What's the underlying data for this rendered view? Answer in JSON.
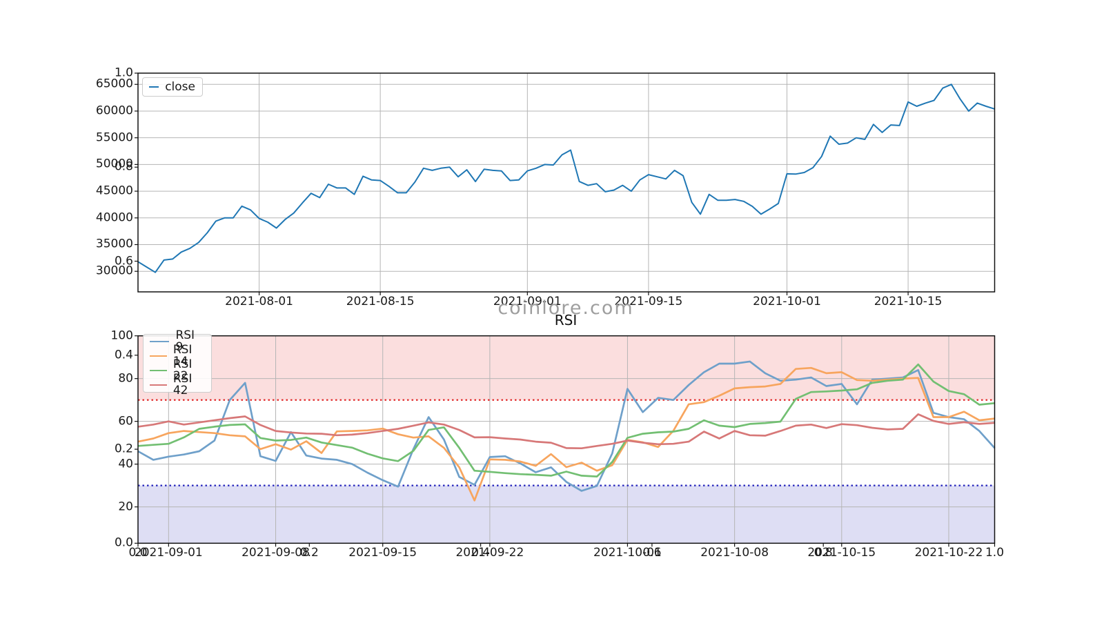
{
  "watermark": {
    "text": "coinlore.com",
    "color": "#9e9e9e"
  },
  "top_chart": {
    "legend": [
      {
        "label": "close",
        "color": "#1f77b4"
      }
    ],
    "y_tick_labels": [
      "30000",
      "35000",
      "40000",
      "45000",
      "50000",
      "55000",
      "60000",
      "65000"
    ],
    "x_tick_labels": [
      "2021-08-01",
      "2021-08-15",
      "2021-09-01",
      "2021-09-15",
      "2021-10-01",
      "2021-10-15"
    ]
  },
  "overlay_axis": {
    "left_tick_labels": [
      "1.0",
      "0.8",
      "0.6",
      "0.4",
      "0.2",
      "0.0"
    ],
    "bottom_tick_labels": [
      "0.0",
      "0.2",
      "0.4",
      "0.6",
      "0.8",
      "1.0"
    ]
  },
  "rsi_chart": {
    "title": "RSI",
    "legend": [
      {
        "label": "RSI 9",
        "color": "#6fa0ca"
      },
      {
        "label": "RSI 14",
        "color": "#f7a55e"
      },
      {
        "label": "RSI 22",
        "color": "#72bf72"
      },
      {
        "label": "RSI 42",
        "color": "#d77878"
      }
    ],
    "y_tick_labels": [
      "20",
      "40",
      "60",
      "80",
      "100"
    ],
    "x_tick_labels": [
      "2021-09-01",
      "2021-09-08",
      "2021-09-15",
      "2021-09-22",
      "2021-10-01",
      "2021-10-08",
      "2021-10-15",
      "2021-10-22"
    ],
    "overbought_level": 70,
    "oversold_level": 30,
    "band_colors": {
      "overbought": "#fbdedе",
      "oversold": "#dedef4"
    },
    "dotted_line_colors": {
      "overbought": "#df2020",
      "oversold": "#2323bb"
    }
  },
  "chart_data": [
    {
      "type": "line",
      "title": "",
      "ylabel": "",
      "grid": true,
      "legend_position": "upper left",
      "ylim": [
        26150,
        67100
      ],
      "y_ticks": [
        30000,
        35000,
        40000,
        45000,
        50000,
        55000,
        60000,
        65000
      ],
      "x_tick_dates": [
        "2021-08-01",
        "2021-08-15",
        "2021-09-01",
        "2021-09-15",
        "2021-10-01",
        "2021-10-15"
      ],
      "x": [
        "2021-07-18",
        "2021-07-19",
        "2021-07-20",
        "2021-07-21",
        "2021-07-22",
        "2021-07-23",
        "2021-07-24",
        "2021-07-25",
        "2021-07-26",
        "2021-07-27",
        "2021-07-28",
        "2021-07-29",
        "2021-07-30",
        "2021-07-31",
        "2021-08-01",
        "2021-08-02",
        "2021-08-03",
        "2021-08-04",
        "2021-08-05",
        "2021-08-06",
        "2021-08-07",
        "2021-08-08",
        "2021-08-09",
        "2021-08-10",
        "2021-08-11",
        "2021-08-12",
        "2021-08-13",
        "2021-08-14",
        "2021-08-15",
        "2021-08-16",
        "2021-08-17",
        "2021-08-18",
        "2021-08-19",
        "2021-08-20",
        "2021-08-21",
        "2021-08-22",
        "2021-08-23",
        "2021-08-24",
        "2021-08-25",
        "2021-08-26",
        "2021-08-27",
        "2021-08-28",
        "2021-08-29",
        "2021-08-30",
        "2021-08-31",
        "2021-09-01",
        "2021-09-02",
        "2021-09-03",
        "2021-09-04",
        "2021-09-05",
        "2021-09-06",
        "2021-09-07",
        "2021-09-08",
        "2021-09-09",
        "2021-09-10",
        "2021-09-11",
        "2021-09-12",
        "2021-09-13",
        "2021-09-14",
        "2021-09-15",
        "2021-09-16",
        "2021-09-17",
        "2021-09-18",
        "2021-09-19",
        "2021-09-20",
        "2021-09-21",
        "2021-09-22",
        "2021-09-23",
        "2021-09-24",
        "2021-09-25",
        "2021-09-26",
        "2021-09-27",
        "2021-09-28",
        "2021-09-29",
        "2021-09-30",
        "2021-10-01",
        "2021-10-02",
        "2021-10-03",
        "2021-10-04",
        "2021-10-05",
        "2021-10-06",
        "2021-10-07",
        "2021-10-08",
        "2021-10-09",
        "2021-10-10",
        "2021-10-11",
        "2021-10-12",
        "2021-10-13",
        "2021-10-14",
        "2021-10-15",
        "2021-10-16",
        "2021-10-17",
        "2021-10-18",
        "2021-10-19",
        "2021-10-20",
        "2021-10-21",
        "2021-10-22",
        "2021-10-23",
        "2021-10-24",
        "2021-10-25"
      ],
      "series": [
        {
          "name": "close",
          "color": "#1f77b4",
          "values": [
            31800,
            30800,
            29800,
            32100,
            32300,
            33600,
            34300,
            35400,
            37200,
            39400,
            40000,
            40000,
            42200,
            41500,
            39900,
            39200,
            38100,
            39700,
            40900,
            42800,
            44600,
            43800,
            46300,
            45600,
            45600,
            44400,
            47800,
            47100,
            47000,
            45900,
            44700,
            44700,
            46700,
            49300,
            48900,
            49300,
            49500,
            47700,
            49000,
            46800,
            49100,
            48900,
            48800,
            47000,
            47100,
            48800,
            49300,
            50000,
            49900,
            51800,
            52700,
            46800,
            46100,
            46400,
            44900,
            45200,
            46100,
            45000,
            47100,
            48100,
            47700,
            47300,
            48900,
            47900,
            42900,
            40700,
            44400,
            43300,
            43300,
            43450,
            43100,
            42150,
            40700,
            41650,
            42700,
            48250,
            48200,
            48500,
            49400,
            51500,
            55300,
            53800,
            54000,
            55000,
            54700,
            57500,
            56000,
            57400,
            57300,
            61700,
            60900,
            61500,
            62000,
            64300,
            65000,
            62300,
            60000,
            61500,
            60900,
            60400
          ]
        }
      ]
    },
    {
      "type": "line",
      "title": "RSI",
      "grid": true,
      "legend_position": "upper left",
      "ylim": [
        3,
        100
      ],
      "y_ticks": [
        20,
        40,
        60,
        80,
        100
      ],
      "x_tick_dates": [
        "2021-09-01",
        "2021-09-08",
        "2021-09-15",
        "2021-09-22",
        "2021-10-01",
        "2021-10-08",
        "2021-10-15",
        "2021-10-22"
      ],
      "hlines": [
        {
          "value": 70,
          "color": "#df2020"
        },
        {
          "value": 30,
          "color": "#2323bb"
        }
      ],
      "bands": [
        {
          "from": 70,
          "to": 100,
          "color": "#fbdede"
        },
        {
          "from": 3,
          "to": 30,
          "color": "#dedef4"
        }
      ],
      "x": [
        "2021-08-30",
        "2021-08-31",
        "2021-09-01",
        "2021-09-02",
        "2021-09-03",
        "2021-09-04",
        "2021-09-05",
        "2021-09-06",
        "2021-09-07",
        "2021-09-08",
        "2021-09-09",
        "2021-09-10",
        "2021-09-11",
        "2021-09-12",
        "2021-09-13",
        "2021-09-14",
        "2021-09-15",
        "2021-09-16",
        "2021-09-17",
        "2021-09-18",
        "2021-09-19",
        "2021-09-20",
        "2021-09-21",
        "2021-09-22",
        "2021-09-23",
        "2021-09-24",
        "2021-09-25",
        "2021-09-26",
        "2021-09-27",
        "2021-09-28",
        "2021-09-29",
        "2021-09-30",
        "2021-10-01",
        "2021-10-02",
        "2021-10-03",
        "2021-10-04",
        "2021-10-05",
        "2021-10-06",
        "2021-10-07",
        "2021-10-08",
        "2021-10-09",
        "2021-10-10",
        "2021-10-11",
        "2021-10-12",
        "2021-10-13",
        "2021-10-14",
        "2021-10-15",
        "2021-10-16",
        "2021-10-17",
        "2021-10-18",
        "2021-10-19",
        "2021-10-20",
        "2021-10-21",
        "2021-10-22",
        "2021-10-23",
        "2021-10-24",
        "2021-10-25"
      ],
      "series": [
        {
          "name": "RSI 9",
          "color": "#6fa0ca",
          "values": [
            46,
            42,
            43.5,
            44.5,
            46,
            51,
            70,
            78,
            43.7,
            41.5,
            55,
            44,
            42.6,
            42,
            40,
            36,
            32.5,
            29.5,
            47,
            62,
            51.5,
            34,
            30.3,
            43.3,
            43.7,
            40.3,
            36.2,
            38.5,
            31.7,
            27.5,
            29.8,
            45,
            75.2,
            64.3,
            71,
            70,
            77,
            83,
            87,
            87,
            88,
            82.5,
            79,
            79.5,
            80.5,
            76.5,
            77.5,
            68,
            79.5,
            80,
            80.5,
            84,
            64,
            62,
            61,
            55.5,
            47.5
          ]
        },
        {
          "name": "RSI 14",
          "color": "#f7a55e",
          "values": [
            50.5,
            52,
            54.5,
            55.5,
            55,
            54.5,
            53.5,
            53,
            47,
            49.3,
            46.8,
            50.7,
            45.2,
            55.3,
            55.5,
            55.8,
            56.6,
            54,
            52.4,
            53,
            47.6,
            38.5,
            23,
            42.2,
            42,
            41.2,
            39.2,
            44.7,
            38.6,
            40.7,
            36.9,
            39.5,
            51.3,
            50.2,
            48,
            55.6,
            68,
            69,
            72,
            75.4,
            76,
            76.3,
            77.5,
            84.5,
            85,
            82.5,
            83,
            79.3,
            79,
            79.5,
            80,
            80.3,
            62,
            62,
            64.5,
            60.5,
            61.3
          ]
        },
        {
          "name": "RSI 22",
          "color": "#72bf72",
          "values": [
            48.5,
            49,
            49.5,
            52.5,
            56.5,
            57.5,
            58.3,
            58.6,
            52.2,
            51,
            51.3,
            52.4,
            50.1,
            48.9,
            47.7,
            44.9,
            42.7,
            41.4,
            46.2,
            56,
            57.2,
            47.6,
            36.9,
            36.4,
            35.8,
            35.3,
            35,
            34.6,
            36.5,
            34.6,
            34.2,
            41,
            52.3,
            54.2,
            54.9,
            55.2,
            56.5,
            60.5,
            58,
            57.3,
            58.8,
            59.2,
            59.9,
            70.5,
            73.7,
            74,
            74.4,
            75,
            78,
            79,
            79.5,
            86.6,
            78.6,
            74.2,
            72.7,
            67.8,
            68.5
          ]
        },
        {
          "name": "RSI 42",
          "color": "#d77878",
          "values": [
            57.5,
            58.5,
            60,
            58.5,
            59.5,
            60.5,
            61.5,
            62.3,
            58.3,
            55.5,
            54.8,
            54.3,
            54.2,
            53.5,
            53.8,
            54.5,
            55.5,
            56.5,
            58,
            59.5,
            58.5,
            56,
            52.5,
            52.6,
            52,
            51.5,
            50.5,
            50,
            47.5,
            47.4,
            48.5,
            49.5,
            51,
            50,
            49.3,
            49.5,
            50.5,
            55.2,
            52,
            55.5,
            53.5,
            53.3,
            55.5,
            58,
            58.5,
            56.9,
            58.7,
            58.2,
            57,
            56.2,
            56.5,
            63.3,
            60.2,
            58.8,
            59.6,
            58.8,
            59.3
          ]
        }
      ]
    }
  ]
}
